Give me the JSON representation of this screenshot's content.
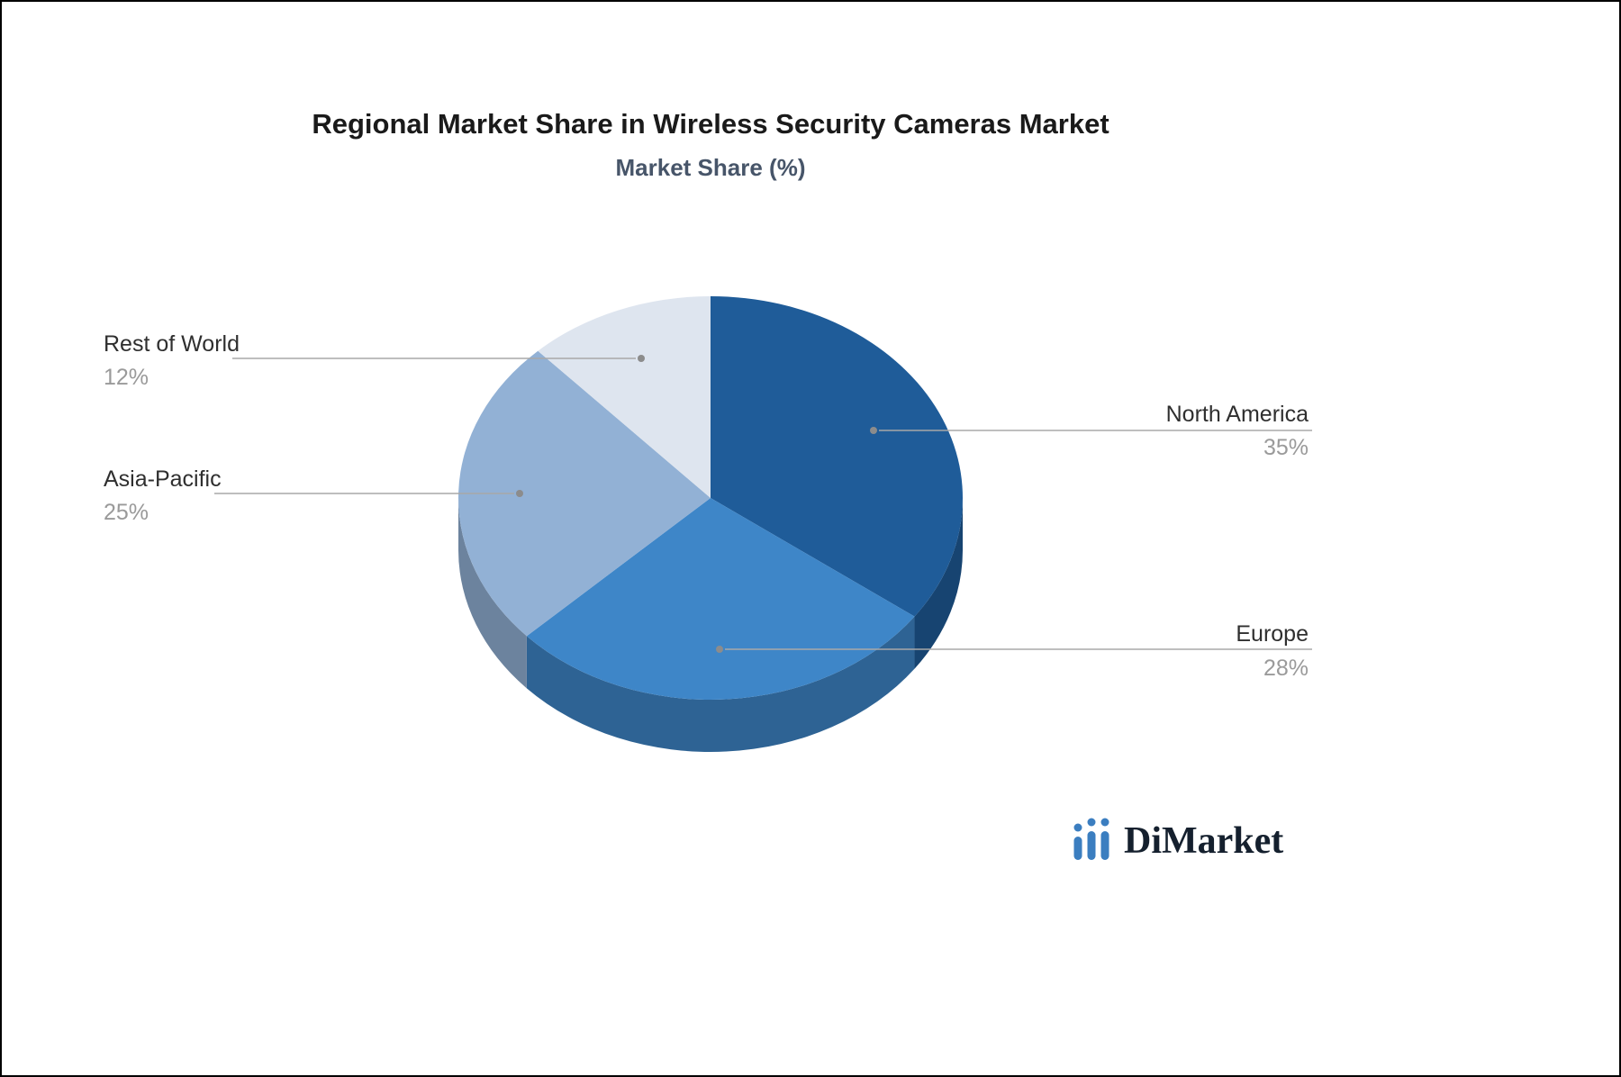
{
  "page": {
    "title": "Regional Market Share in Wireless Security Cameras Market",
    "subtitle": "Market Share (%)"
  },
  "logo": {
    "text": "DiMarket",
    "icon": "bar-chart-logo-icon",
    "icon_color": "#3b7ec0",
    "text_color": "#15202e"
  },
  "chart_data": {
    "type": "pie",
    "title": "Regional Market Share in Wireless Security Cameras Market",
    "subtitle": "Market Share (%)",
    "unit": "%",
    "style": "3d-pie",
    "direction": "clockwise",
    "start_angle_deg": 0,
    "slices": [
      {
        "label": "North America",
        "value": 35,
        "value_label": "35%",
        "color": "#1f5c99"
      },
      {
        "label": "Europe",
        "value": 28,
        "value_label": "28%",
        "color": "#3e86c8"
      },
      {
        "label": "Asia-Pacific",
        "value": 25,
        "value_label": "25%",
        "color": "#92b1d5"
      },
      {
        "label": "Rest of World",
        "value": 12,
        "value_label": "12%",
        "color": "#dee5ef"
      }
    ]
  }
}
